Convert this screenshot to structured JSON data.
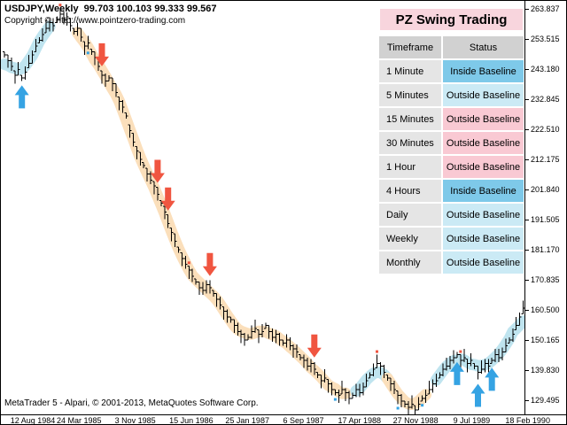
{
  "header": {
    "symbol_line": "USDJPY,Weekly  99.703 100.103 99.333 99.567",
    "copyright_line": "Copyright ©, http://www.pointzero-trading.com"
  },
  "footer": {
    "text": "MetaTrader 5 - Alpari, © 2001-2013, MetaQuotes Software Corp."
  },
  "panel": {
    "title": "PZ Swing Trading",
    "header": {
      "timeframe": "Timeframe",
      "status": "Status"
    },
    "colors": {
      "title_bg": "#F8D5DD",
      "header_bg": "#D1D1D1",
      "timeframe_bg": "#E5E5E5",
      "inside": "#7EC9E9",
      "outside_bull": "#CBEAF5",
      "outside_bear": "#F9C9D3"
    },
    "rows": [
      {
        "timeframe": "1 Minute",
        "status": "Inside Baseline",
        "state": "inside"
      },
      {
        "timeframe": "5 Minutes",
        "status": "Outside Baseline",
        "state": "outside_bull"
      },
      {
        "timeframe": "15 Minutes",
        "status": "Outside Baseline",
        "state": "outside_bear"
      },
      {
        "timeframe": "30 Minutes",
        "status": "Outside Baseline",
        "state": "outside_bear"
      },
      {
        "timeframe": "1 Hour",
        "status": "Outside Baseline",
        "state": "outside_bear"
      },
      {
        "timeframe": "4 Hours",
        "status": "Inside Baseline",
        "state": "inside"
      },
      {
        "timeframe": "Daily",
        "status": "Outside Baseline",
        "state": "outside_bull"
      },
      {
        "timeframe": "Weekly",
        "status": "Outside Baseline",
        "state": "outside_bull"
      },
      {
        "timeframe": "Monthly",
        "status": "Outside Baseline",
        "state": "outside_bull"
      }
    ]
  },
  "chart_data": {
    "type": "ohlc-bar",
    "symbol": "USDJPY",
    "timeframe": "Weekly",
    "title": "USDJPY,Weekly 99.703 100.103 99.333 99.567",
    "x_labels": [
      "12 Aug 1984",
      "24 Mar 1985",
      "3 Nov 1985",
      "15 Jun 1986",
      "25 Jan 1987",
      "6 Sep 1987",
      "17 Apr 1988",
      "27 Nov 1988",
      "9 Jul 1989",
      "18 Feb 1990"
    ],
    "y_ticks": [
      "263.837",
      "253.515",
      "243.180",
      "232.845",
      "222.510",
      "212.175",
      "201.840",
      "191.505",
      "181.170",
      "170.835",
      "160.500",
      "150.165",
      "139.830",
      "129.495"
    ],
    "ylim": [
      124.5,
      266.5
    ],
    "grid": false,
    "closes": [
      248,
      246,
      244,
      241,
      243,
      240,
      242,
      245,
      248,
      251,
      253,
      255,
      257,
      259,
      258,
      260,
      262,
      260,
      261,
      258,
      256,
      257,
      254,
      251,
      252,
      249,
      247,
      244,
      241,
      239,
      240,
      238,
      235,
      232,
      230,
      227,
      222,
      218,
      215,
      212,
      210,
      207,
      205,
      203,
      200,
      197,
      194,
      190,
      187,
      184,
      181,
      178,
      176,
      174,
      172,
      170,
      168,
      167,
      169,
      168,
      166,
      164,
      162,
      160,
      158,
      157,
      155,
      153,
      152,
      150,
      151,
      153,
      154,
      152,
      153,
      155,
      153,
      151,
      152,
      150,
      149,
      150,
      148,
      147,
      146,
      144,
      143,
      141,
      142,
      140,
      138,
      136,
      137,
      135,
      133,
      132,
      131,
      133,
      132,
      130,
      131,
      133,
      132,
      134,
      136,
      138,
      140,
      142,
      141,
      139,
      137,
      135,
      133,
      131,
      129,
      128,
      127,
      128,
      126,
      128,
      130,
      131,
      133,
      135,
      136,
      138,
      140,
      141,
      143,
      144,
      145,
      143,
      144,
      142,
      143,
      141,
      139,
      140,
      142,
      141,
      143,
      145,
      144,
      146,
      148,
      150,
      152,
      155,
      158,
      161
    ],
    "bands": [
      {
        "from": 0,
        "to": 13,
        "color": "blue"
      },
      {
        "from": 21,
        "to": 98,
        "color": "peach"
      },
      {
        "from": 101,
        "to": 110,
        "color": "blue"
      },
      {
        "from": 110,
        "to": 121,
        "color": "peach"
      },
      {
        "from": 124,
        "to": 149,
        "color": "blue"
      }
    ],
    "band_colors": {
      "blue": "#BFE4EF",
      "peach": "#FBDFBB"
    },
    "arrows": [
      {
        "i": 5,
        "dir": "up"
      },
      {
        "i": 28,
        "dir": "down"
      },
      {
        "i": 44,
        "dir": "down"
      },
      {
        "i": 47,
        "dir": "down"
      },
      {
        "i": 59,
        "dir": "down"
      },
      {
        "i": 89,
        "dir": "down"
      },
      {
        "i": 130,
        "dir": "up"
      },
      {
        "i": 136,
        "dir": "up"
      },
      {
        "i": 140,
        "dir": "up"
      }
    ],
    "arrow_colors": {
      "up": "#35A3E3",
      "down": "#F05540"
    },
    "dots": [
      {
        "i": 16,
        "color": "red"
      },
      {
        "i": 53,
        "color": "red"
      },
      {
        "i": 107,
        "color": "red"
      },
      {
        "i": 131,
        "color": "red"
      },
      {
        "i": 24,
        "color": "blue"
      },
      {
        "i": 95,
        "color": "blue"
      },
      {
        "i": 113,
        "color": "blue"
      },
      {
        "i": 120,
        "color": "blue"
      }
    ]
  }
}
